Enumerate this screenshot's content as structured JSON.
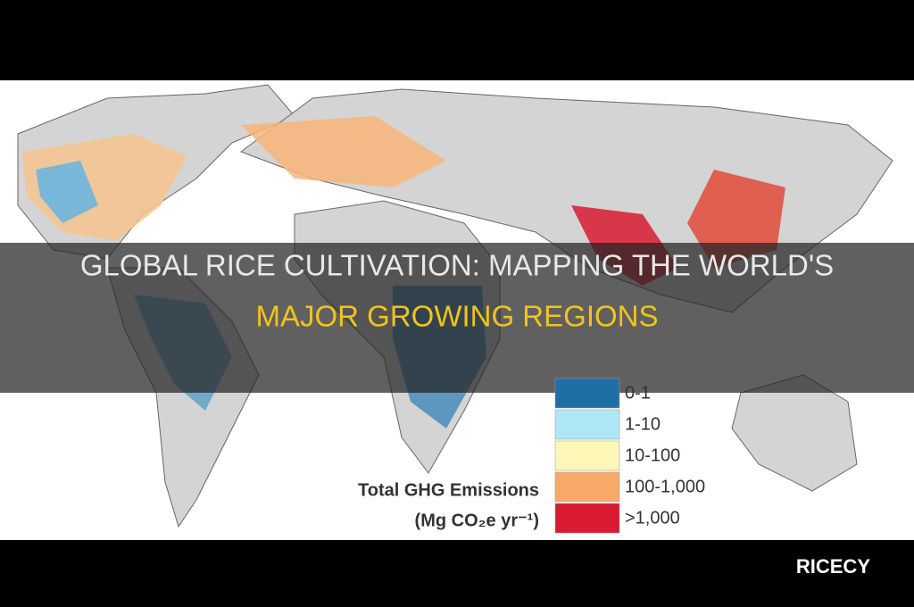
{
  "header": {
    "title_line1": "GLOBAL RICE CULTIVATION: MAPPING THE WORLD'S",
    "title_line2": "MAJOR GROWING REGIONS"
  },
  "map": {
    "legend": {
      "title": "Total GHG Emissions",
      "units": "(Mg CO₂e yr⁻¹)",
      "items": [
        {
          "label": "0-1",
          "color": "#1f6fa6"
        },
        {
          "label": "1-10",
          "color": "#aee6f6"
        },
        {
          "label": "10-100",
          "color": "#fcf7b6"
        },
        {
          "label": "100-1,000",
          "color": "#f8a868"
        },
        {
          "label": ">1,000",
          "color": "#d81b30"
        }
      ]
    }
  },
  "brand": "RICECY"
}
